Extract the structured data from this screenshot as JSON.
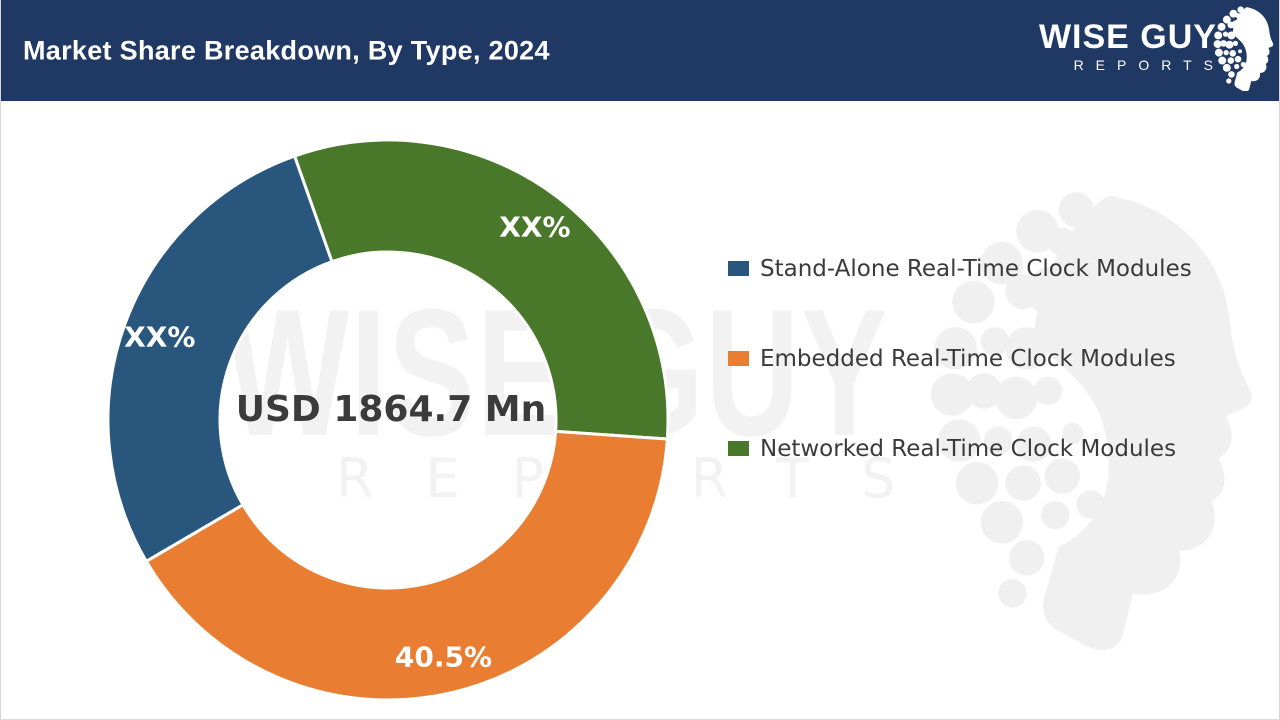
{
  "header": {
    "title": "Market Share Breakdown, By Type, 2024",
    "logo": {
      "brand": "WISE GUY",
      "tagline": "REPORTS"
    }
  },
  "watermark": {
    "brand": "WISE GUY",
    "tagline": "REPORTS"
  },
  "chart_data": {
    "type": "pie",
    "subtype": "donut",
    "title": "Market Share Breakdown, By Type, 2024",
    "center_label": "USD 1864.7 Mn",
    "start_angle_deg": -19.5,
    "direction": "clockwise",
    "inner_radius_ratio": 0.6,
    "legend_position": "right",
    "segments": [
      {
        "name": "Networked Real-Time Clock Modules",
        "data_label": "XX%",
        "value_pct_est": 31.5,
        "color": "#4a782a"
      },
      {
        "name": "Embedded Real-Time Clock Modules",
        "data_label": "40.5%",
        "value_pct_est": 40.5,
        "color": "#e97d31"
      },
      {
        "name": "Stand-Alone Real-Time Clock Modules",
        "data_label": "XX%",
        "value_pct_est": 28.0,
        "color": "#28567d"
      }
    ],
    "legend": [
      {
        "label": "Stand-Alone Real-Time Clock Modules",
        "color": "#28567d"
      },
      {
        "label": "Embedded Real-Time Clock Modules",
        "color": "#e97d31"
      },
      {
        "label": "Networked Real-Time Clock Modules",
        "color": "#4a782a"
      }
    ]
  },
  "colors": {
    "header_bg": "#1f3864",
    "text_dark": "#3b3b3b",
    "watermark": "#f2f2f2",
    "segment_gap": "#ffffff"
  }
}
